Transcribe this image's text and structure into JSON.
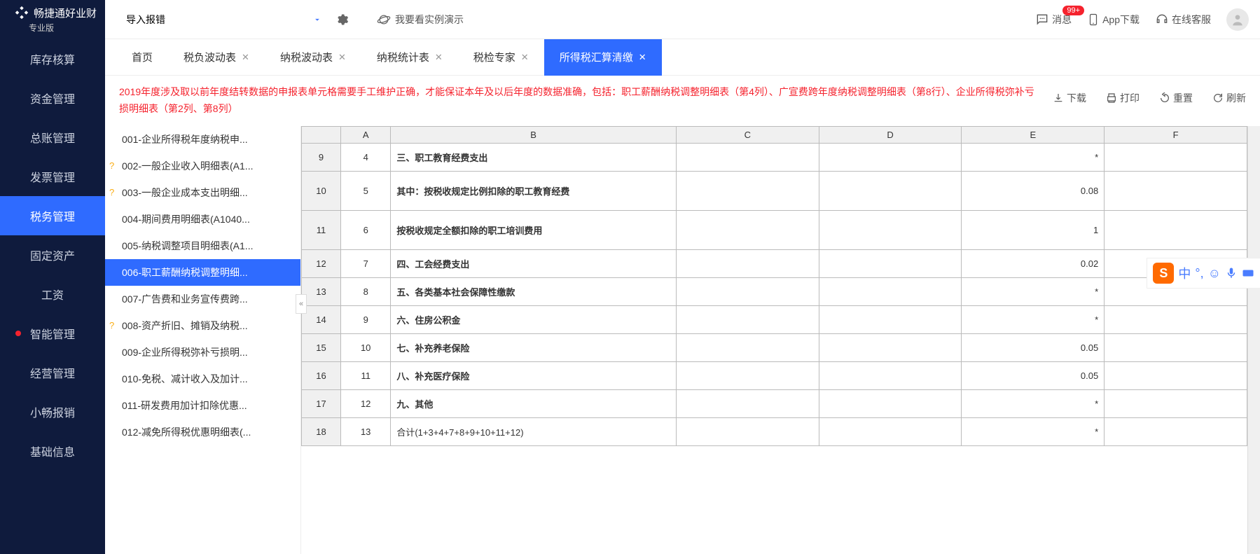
{
  "brand": {
    "name": "畅捷通好业财",
    "edition": "专业版"
  },
  "search": {
    "value": "导入报错"
  },
  "demo_link": "我要看实例演示",
  "topbar": {
    "msg": "消息",
    "msg_badge": "99+",
    "app": "App下载",
    "service": "在线客服"
  },
  "sidebar": [
    {
      "label": "库存核算",
      "dot": false
    },
    {
      "label": "资金管理",
      "dot": false
    },
    {
      "label": "总账管理",
      "dot": false
    },
    {
      "label": "发票管理",
      "dot": false
    },
    {
      "label": "税务管理",
      "dot": false,
      "active": true
    },
    {
      "label": "固定资产",
      "dot": false
    },
    {
      "label": "工资",
      "dot": false
    },
    {
      "label": "智能管理",
      "dot": true
    },
    {
      "label": "经营管理",
      "dot": false
    },
    {
      "label": "小畅报销",
      "dot": false
    },
    {
      "label": "基础信息",
      "dot": false
    }
  ],
  "tabs": [
    {
      "label": "首页",
      "closable": false
    },
    {
      "label": "税负波动表",
      "closable": true
    },
    {
      "label": "纳税波动表",
      "closable": true
    },
    {
      "label": "纳税统计表",
      "closable": true
    },
    {
      "label": "税检专家",
      "closable": true
    },
    {
      "label": "所得税汇算清缴",
      "closable": true,
      "active": true
    }
  ],
  "notice": "2019年度涉及取以前年度结转数据的申报表单元格需要手工维护正确，才能保证本年及以后年度的数据准确，包括：职工薪酬纳税调整明细表（第4列）、广宣费跨年度纳税调整明细表（第8行）、企业所得税弥补亏损明细表（第2列、第8列）",
  "actions": {
    "download": "下载",
    "print": "打印",
    "reset": "重置",
    "refresh": "刷新"
  },
  "form_list": [
    {
      "label": "001-企业所得税年度纳税申...",
      "q": false
    },
    {
      "label": "002-一般企业收入明细表(A1...",
      "q": true
    },
    {
      "label": "003-一般企业成本支出明细...",
      "q": true
    },
    {
      "label": "004-期间费用明细表(A1040...",
      "q": false
    },
    {
      "label": "005-纳税调整项目明细表(A1...",
      "q": false
    },
    {
      "label": "006-职工薪酬纳税调整明细...",
      "q": false,
      "active": true
    },
    {
      "label": "007-广告费和业务宣传费跨...",
      "q": false
    },
    {
      "label": "008-资产折旧、摊销及纳税...",
      "q": true
    },
    {
      "label": "009-企业所得税弥补亏损明...",
      "q": false
    },
    {
      "label": "010-免税、减计收入及加计...",
      "q": false
    },
    {
      "label": "011-研发费用加计扣除优惠...",
      "q": false
    },
    {
      "label": "012-减免所得税优惠明细表(...",
      "q": false
    }
  ],
  "sheet": {
    "col_headers": [
      "A",
      "B",
      "C",
      "D",
      "E",
      "F"
    ],
    "rows": [
      {
        "hdr": "9",
        "a": "4",
        "b": "三、职工教育经费支出",
        "bold": true,
        "e": "*",
        "h": "med"
      },
      {
        "hdr": "10",
        "a": "5",
        "b": "其中：按税收规定比例扣除的职工教育经费",
        "bold": true,
        "e": "0.08",
        "h": "tall"
      },
      {
        "hdr": "11",
        "a": "6",
        "b": "按税收规定全额扣除的职工培训费用",
        "bold": true,
        "e": "1",
        "h": "tall"
      },
      {
        "hdr": "12",
        "a": "7",
        "b": "四、工会经费支出",
        "bold": true,
        "e": "0.02",
        "h": "med"
      },
      {
        "hdr": "13",
        "a": "8",
        "b": "五、各类基本社会保障性缴款",
        "bold": true,
        "e": "*",
        "h": "med"
      },
      {
        "hdr": "14",
        "a": "9",
        "b": "六、住房公积金",
        "bold": true,
        "e": "*",
        "h": "med"
      },
      {
        "hdr": "15",
        "a": "10",
        "b": "七、补充养老保险",
        "bold": true,
        "e": "0.05",
        "h": "med"
      },
      {
        "hdr": "16",
        "a": "11",
        "b": "八、补充医疗保险",
        "bold": true,
        "e": "0.05",
        "h": "med"
      },
      {
        "hdr": "17",
        "a": "12",
        "b": "九、其他",
        "bold": true,
        "e": "*",
        "h": "med"
      },
      {
        "hdr": "18",
        "a": "13",
        "b": "合计(1+3+4+7+8+9+10+11+12)",
        "bold": false,
        "e": "*",
        "h": "med"
      }
    ]
  },
  "ime": {
    "label": "中"
  }
}
